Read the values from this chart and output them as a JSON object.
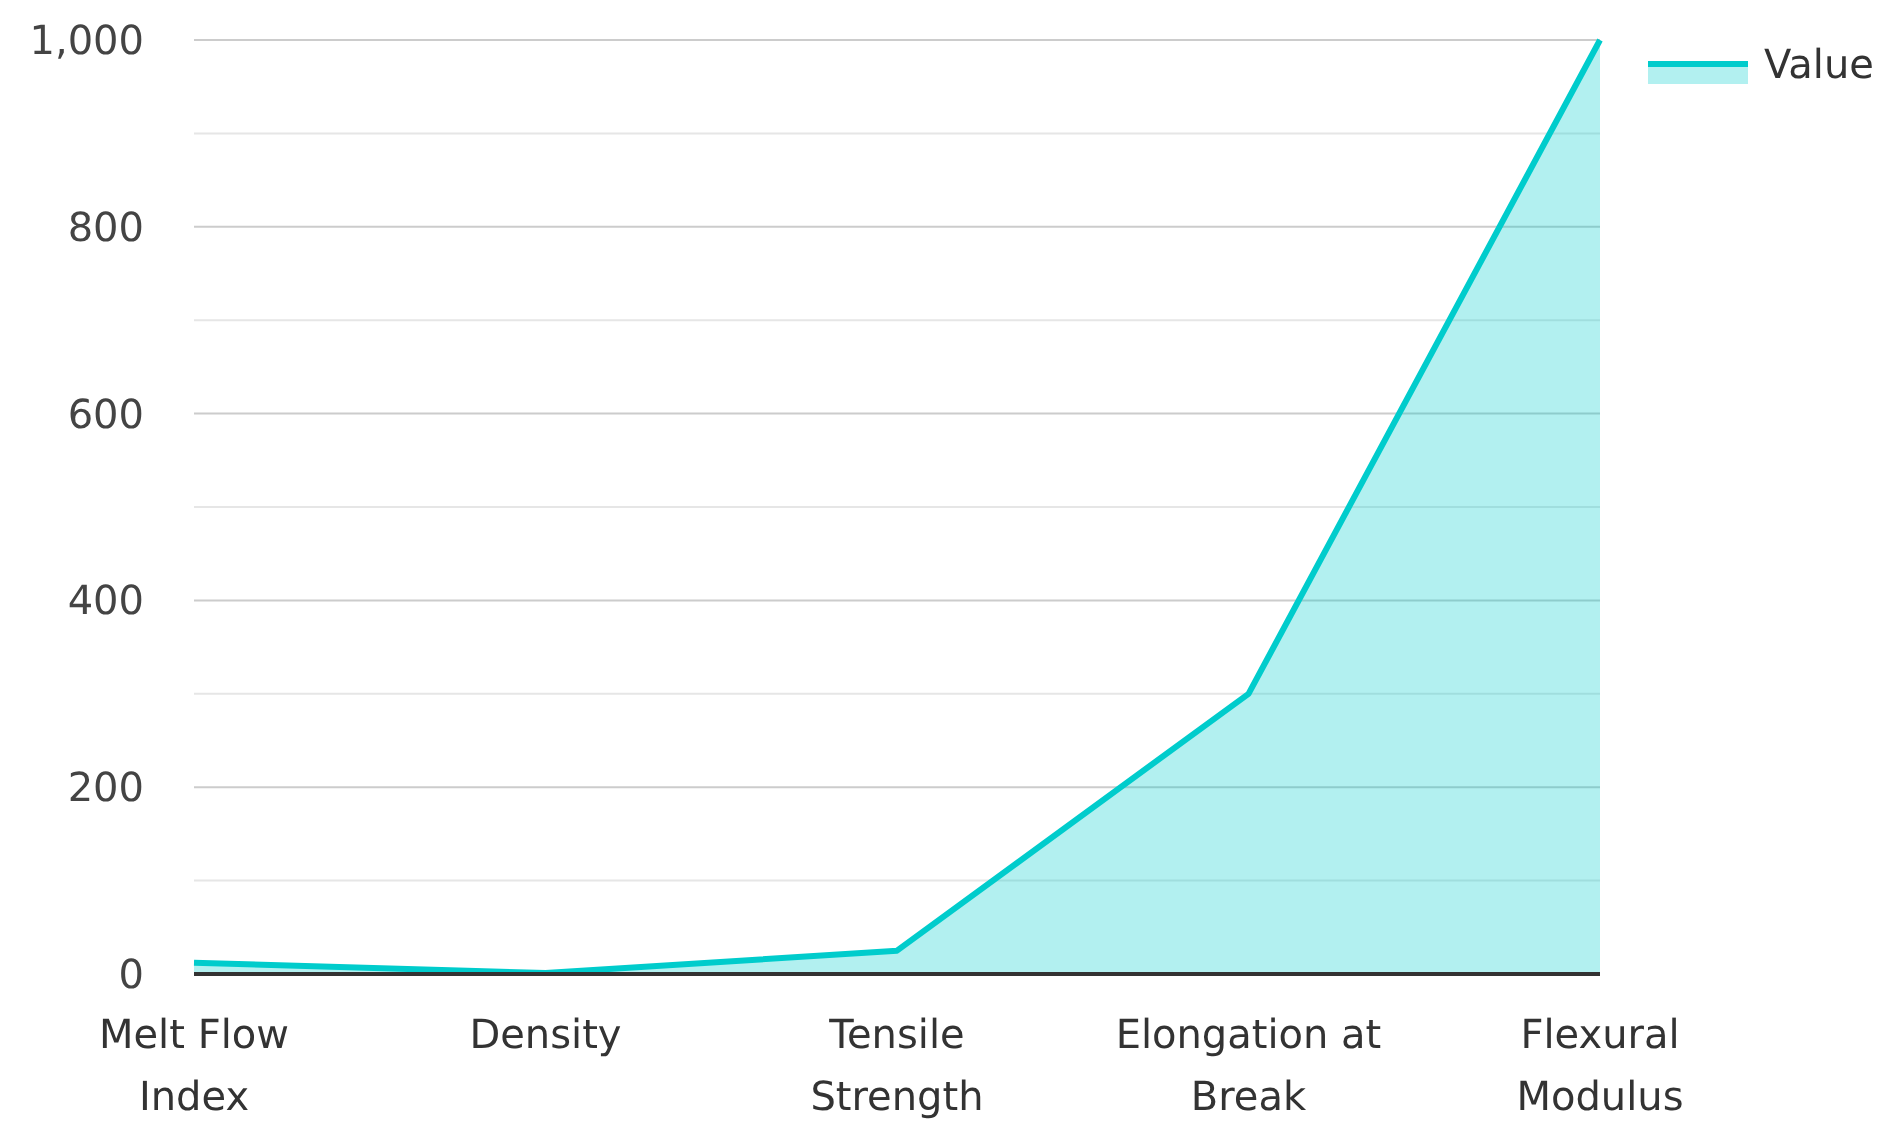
{
  "chart_data": {
    "type": "area",
    "categories": [
      "Melt Flow Index",
      "Density",
      "Tensile Strength",
      "Elongation at Break",
      "Flexural Modulus"
    ],
    "series": [
      {
        "name": "Value",
        "color": "#00cccc",
        "values": [
          12,
          1,
          25,
          300,
          1000
        ]
      }
    ],
    "ylim": [
      0,
      1000
    ],
    "yticks": [
      0,
      {
        "value": 100,
        "label": null
      },
      200,
      {
        "value": 300,
        "label": null
      },
      400,
      {
        "value": 500,
        "label": null
      },
      600,
      {
        "value": 700,
        "label": null
      },
      800,
      {
        "value": 900,
        "label": null
      },
      {
        "value": 1000,
        "label": "1,000"
      }
    ],
    "grid": "y",
    "legend": "top right"
  }
}
